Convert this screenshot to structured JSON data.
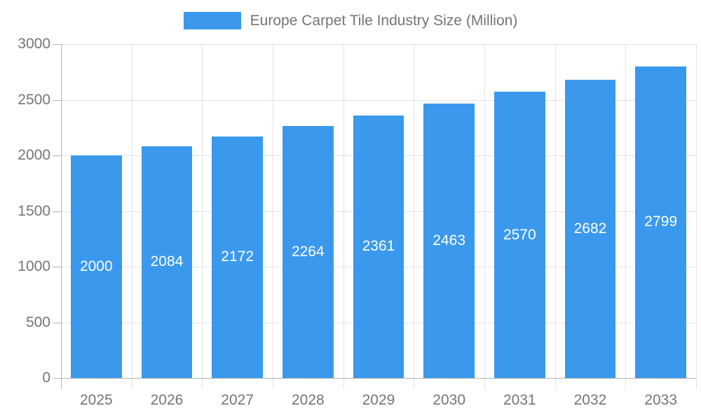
{
  "legend": {
    "label": "Europe Carpet Tile Industry Size (Million)"
  },
  "chart_data": {
    "type": "bar",
    "title": "Europe Carpet Tile Industry Size (Million)",
    "categories": [
      "2025",
      "2026",
      "2027",
      "2028",
      "2029",
      "2030",
      "2031",
      "2032",
      "2033"
    ],
    "values": [
      2000,
      2084,
      2172,
      2264,
      2361,
      2463,
      2570,
      2682,
      2799
    ],
    "xlabel": "",
    "ylabel": "",
    "ylim": [
      0,
      3000
    ],
    "yticks": [
      0,
      500,
      1000,
      1500,
      2000,
      2500,
      3000
    ],
    "grid": true,
    "legend_position": "top-center",
    "bar_color": "#3A99EC",
    "bar_label_color": "#FFFFFF",
    "axis_text_color": "#757575",
    "axis_line_color": "#B5B5B5",
    "gridline_color": "#E3E3E3"
  }
}
